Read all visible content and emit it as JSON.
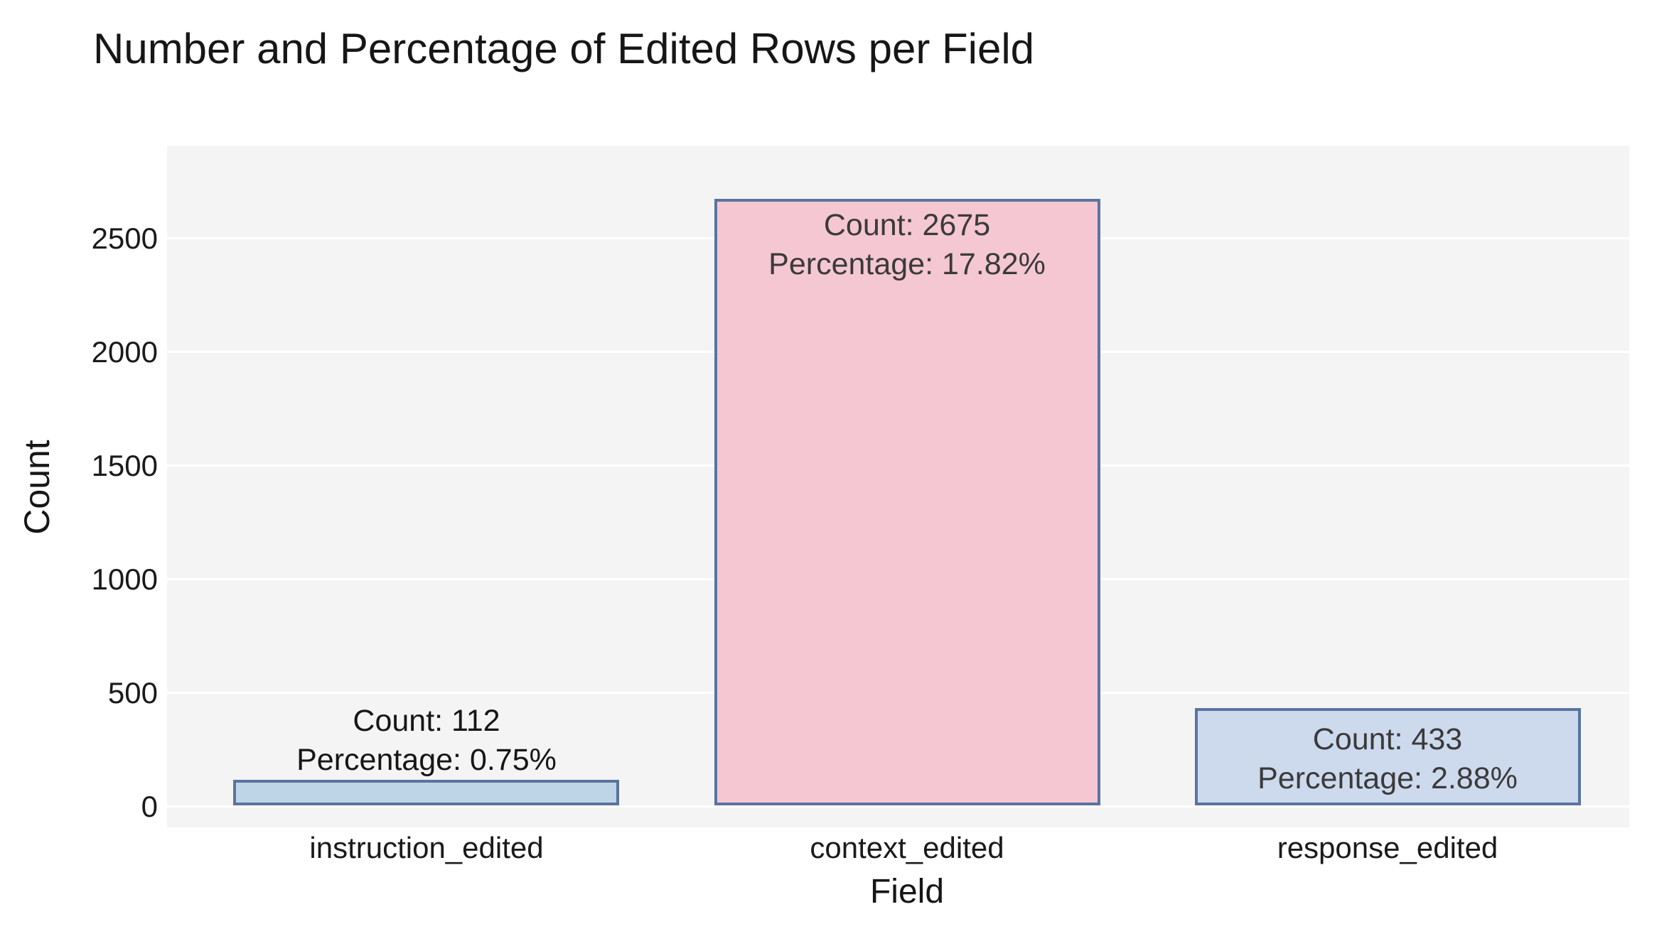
{
  "chart_data": {
    "type": "bar",
    "title": "Number and Percentage of Edited Rows per Field",
    "xlabel": "Field",
    "ylabel": "Count",
    "categories": [
      "instruction_edited",
      "context_edited",
      "response_edited"
    ],
    "values": [
      112,
      2675,
      433
    ],
    "percentages": [
      0.75,
      17.82,
      2.88
    ],
    "ylim": [
      0,
      2900
    ],
    "ytick_step": 500,
    "ytick_labels": [
      "2500",
      "2000",
      "1500",
      "1000",
      "500",
      "0"
    ],
    "grid": "horizontal white gridlines on light gray panel",
    "legend_position": "none",
    "bars": [
      {
        "category": "instruction_edited",
        "count": 112,
        "percentage": "0.75%",
        "annotation_line1": "Count: 112",
        "annotation_line2": "Percentage: 0.75%",
        "annotation_placement": "above-bar",
        "fill": "#bed4e6",
        "border": "#5a74a0"
      },
      {
        "category": "context_edited",
        "count": 2675,
        "percentage": "17.82%",
        "annotation_line1": "Count: 2675",
        "annotation_line2": "Percentage: 17.82%",
        "annotation_placement": "inside-bar-top",
        "fill": "#f3c6d1",
        "border": "#5a74a0"
      },
      {
        "category": "response_edited",
        "count": 433,
        "percentage": "2.88%",
        "annotation_line1": "Count: 433",
        "annotation_line2": "Percentage: 2.88%",
        "annotation_placement": "inside-bar",
        "fill": "#ccd8ed",
        "border": "#5a74a0"
      }
    ],
    "colors": {
      "figure_background": "#ffffff",
      "plot_background": "#f4f4f4",
      "gridline": "#ffffff",
      "bar_border": "#5a74a0",
      "title_text": "#161616",
      "tick_text": "#1a1a1a",
      "annotation_text_inside": "#3a3a3a",
      "annotation_text_outside": "#161616"
    }
  }
}
